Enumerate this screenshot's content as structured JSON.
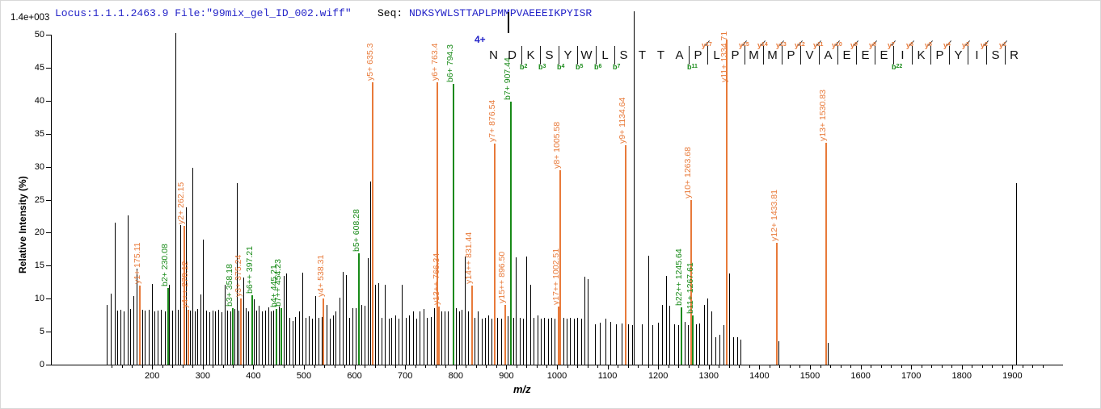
{
  "header": {
    "locus_file": "Locus:1.1.1.2463.9 File:\"99mix_gel_ID_002.wiff\"",
    "seq_label": "Seq:",
    "sequence": "NDKSYWLSTTAPLPMMPVAEEEIKPYISR",
    "intensity_scale": "1.4e+003",
    "precursor_charge": "4+"
  },
  "colors": {
    "y_ion": "#e87a3a",
    "b_ion": "#188a18",
    "header_blue": "#2323c8",
    "peak": "#000000"
  },
  "precursor_marker_mz": 903,
  "seq_display": {
    "residues": [
      {
        "ch": "N",
        "sep": false
      },
      {
        "ch": "D",
        "sep": false
      },
      {
        "ch": "K",
        "sep": true,
        "b": "b2"
      },
      {
        "ch": "S",
        "sep": true,
        "b": "b3"
      },
      {
        "ch": "Y",
        "sep": true,
        "b": "b4"
      },
      {
        "ch": "W",
        "sep": true,
        "b": "b5"
      },
      {
        "ch": "L",
        "sep": true,
        "b": "b6"
      },
      {
        "ch": "S",
        "sep": true,
        "b": "b7"
      },
      {
        "ch": "T",
        "sep": false
      },
      {
        "ch": "T",
        "sep": false
      },
      {
        "ch": "A",
        "sep": false
      },
      {
        "ch": "P",
        "sep": true,
        "b": "b11"
      },
      {
        "ch": "L",
        "sep": true,
        "y": "y17"
      },
      {
        "ch": "P",
        "sep": false
      },
      {
        "ch": "M",
        "sep": true,
        "y": "y15"
      },
      {
        "ch": "M",
        "sep": true,
        "y": "y14"
      },
      {
        "ch": "P",
        "sep": true,
        "y": "y13"
      },
      {
        "ch": "V",
        "sep": true,
        "y": "y12"
      },
      {
        "ch": "A",
        "sep": true,
        "y": "y11"
      },
      {
        "ch": "E",
        "sep": true,
        "y": "y10"
      },
      {
        "ch": "E",
        "sep": true,
        "y": "y9"
      },
      {
        "ch": "E",
        "sep": true,
        "y": "y8"
      },
      {
        "ch": "I",
        "sep": true,
        "y": "y7",
        "b": "b22"
      },
      {
        "ch": "K",
        "sep": true,
        "y": "y6"
      },
      {
        "ch": "P",
        "sep": true,
        "y": "y5"
      },
      {
        "ch": "Y",
        "sep": true,
        "y": "y4"
      },
      {
        "ch": "I",
        "sep": true,
        "y": "y3"
      },
      {
        "ch": "S",
        "sep": true,
        "y": "y2"
      },
      {
        "ch": "R",
        "sep": true,
        "y": "y1"
      }
    ]
  },
  "chart_data": {
    "type": "bar",
    "title": "MS/MS fragment ion spectrum",
    "x_axis": {
      "label": "m/z",
      "min": 0,
      "max": 2000,
      "major_ticks": [
        200,
        300,
        400,
        500,
        600,
        700,
        800,
        900,
        1000,
        1100,
        1200,
        1300,
        1400,
        1500,
        1600,
        1700,
        1800,
        1900
      ],
      "minor_step": 20,
      "minor_start": 120,
      "minor_end": 1960
    },
    "y_axis": {
      "label": "Relative Intensity (%)",
      "min": 0,
      "max": 50,
      "ticks": [
        0,
        5,
        10,
        15,
        20,
        25,
        30,
        35,
        40,
        45,
        50
      ],
      "scale_note": "1.4e+003"
    },
    "annotated_peaks": [
      {
        "l": "y1+ 175.11",
        "mz": 175.11,
        "i": 12,
        "t": "y"
      },
      {
        "l": "b2+ 230.08",
        "mz": 230.08,
        "i": 11.6,
        "t": "b"
      },
      {
        "l": "y2+ 262.15",
        "mz": 262.15,
        "i": 21,
        "t": "y"
      },
      {
        "l": "y4++ 270.12",
        "mz": 270.12,
        "i": 8.3,
        "t": "y"
      },
      {
        "l": "b3+ 358.18",
        "mz": 358.18,
        "i": 8.6,
        "t": "b"
      },
      {
        "l": "y3+ 375.24",
        "mz": 375.24,
        "i": 10,
        "t": "y"
      },
      {
        "l": "b6++ 397.21",
        "mz": 397.21,
        "i": 10.5,
        "t": "b"
      },
      {
        "l": "b4+ 445.21",
        "mz": 445.21,
        "i": 8.4,
        "t": "b"
      },
      {
        "l": "b7++ 454.23",
        "mz": 454.23,
        "i": 8.5,
        "t": "b"
      },
      {
        "l": "y4+ 538.31",
        "mz": 538.31,
        "i": 10,
        "t": "y"
      },
      {
        "l": "b5+ 608.28",
        "mz": 608.28,
        "i": 16.9,
        "t": "b"
      },
      {
        "l": "y5+ 635.3",
        "mz": 635.3,
        "i": 42.8,
        "t": "y"
      },
      {
        "l": "y6+ 763.4",
        "mz": 763.4,
        "i": 42.8,
        "t": "y"
      },
      {
        "l": "y13++ 766.34",
        "mz": 766.34,
        "i": 8.8,
        "t": "y"
      },
      {
        "l": "b6+ 794.3",
        "mz": 794.3,
        "i": 42.5,
        "t": "b"
      },
      {
        "l": "y14++ 831.44",
        "mz": 831.44,
        "i": 12,
        "t": "y"
      },
      {
        "l": "y7+ 876.54",
        "mz": 876.54,
        "i": 33.5,
        "t": "y"
      },
      {
        "l": "y15++ 896.50",
        "mz": 896.5,
        "i": 9,
        "t": "y"
      },
      {
        "l": "b7+ 907.44",
        "mz": 907.44,
        "i": 39.8,
        "t": "b"
      },
      {
        "l": "y17++ 1002.51",
        "mz": 1002.51,
        "i": 8.8,
        "t": "y"
      },
      {
        "l": "y8+ 1005.58",
        "mz": 1005.58,
        "i": 29.5,
        "t": "y"
      },
      {
        "l": "y9+ 1134.64",
        "mz": 1134.64,
        "i": 33.3,
        "t": "y"
      },
      {
        "l": "b22++ 1245.64",
        "mz": 1245.64,
        "i": 8.7,
        "t": "b"
      },
      {
        "l": "y10+ 1263.68",
        "mz": 1263.68,
        "i": 25,
        "t": "y"
      },
      {
        "l": "b11+ 1267.61",
        "mz": 1267.61,
        "i": 7.5,
        "t": "b"
      },
      {
        "l": "y11+ 1334.71",
        "mz": 1334.71,
        "i": 49.3,
        "t": "y",
        "drop": 55
      },
      {
        "l": "y12+ 1433.81",
        "mz": 1433.81,
        "i": 18.4,
        "t": "y"
      },
      {
        "l": "y13+ 1530.83",
        "mz": 1530.83,
        "i": 33.6,
        "t": "y"
      }
    ],
    "peaks": [
      [
        110,
        9
      ],
      [
        118,
        10.8
      ],
      [
        126,
        21.5
      ],
      [
        131,
        8.2
      ],
      [
        137,
        8.3
      ],
      [
        144,
        8.1
      ],
      [
        151,
        22.6
      ],
      [
        157,
        8.4
      ],
      [
        163,
        10.4
      ],
      [
        169,
        14.6
      ],
      [
        180,
        8.3
      ],
      [
        186,
        8.2
      ],
      [
        193,
        8.3
      ],
      [
        200,
        12.2
      ],
      [
        205,
        8.1
      ],
      [
        211,
        8.2
      ],
      [
        218,
        8.3
      ],
      [
        226,
        8.1
      ],
      [
        233,
        12.1
      ],
      [
        240,
        8.2
      ],
      [
        246,
        50.2
      ],
      [
        251,
        8.3
      ],
      [
        256,
        21.2
      ],
      [
        266,
        23.8
      ],
      [
        274,
        8.2
      ],
      [
        279,
        29.8
      ],
      [
        284,
        8.1
      ],
      [
        289,
        8.4
      ],
      [
        295,
        10.6
      ],
      [
        301,
        18.9
      ],
      [
        307,
        8.2
      ],
      [
        313,
        8
      ],
      [
        319,
        8.2
      ],
      [
        325,
        8.1
      ],
      [
        331,
        8.3
      ],
      [
        337,
        8
      ],
      [
        343,
        12.1
      ],
      [
        349,
        8.2
      ],
      [
        355,
        8.1
      ],
      [
        362,
        8.4
      ],
      [
        367,
        27.5
      ],
      [
        371,
        8.2
      ],
      [
        380,
        13.2
      ],
      [
        385,
        8.6
      ],
      [
        390,
        8.1
      ],
      [
        401,
        9.9
      ],
      [
        406,
        8.2
      ],
      [
        411,
        8.9
      ],
      [
        417,
        8.1
      ],
      [
        423,
        8.2
      ],
      [
        429,
        8.7
      ],
      [
        435,
        8.1
      ],
      [
        440,
        8.2
      ],
      [
        450,
        8.8
      ],
      [
        460,
        13.5
      ],
      [
        465,
        13.8
      ],
      [
        471,
        7.1
      ],
      [
        477,
        6.6
      ],
      [
        483,
        7.2
      ],
      [
        490,
        8.1
      ],
      [
        497,
        13.9
      ],
      [
        503,
        7.1
      ],
      [
        509,
        7.3
      ],
      [
        516,
        7
      ],
      [
        523,
        10.4
      ],
      [
        529,
        7.1
      ],
      [
        535,
        7.2
      ],
      [
        544,
        9.1
      ],
      [
        551,
        7
      ],
      [
        557,
        7.4
      ],
      [
        563,
        8.1
      ],
      [
        570,
        10.1
      ],
      [
        577,
        14.1
      ],
      [
        583,
        13.6
      ],
      [
        590,
        7.1
      ],
      [
        596,
        8.5
      ],
      [
        602,
        8.6
      ],
      [
        613,
        9.1
      ],
      [
        620,
        8.9
      ],
      [
        626,
        16.1
      ],
      [
        631,
        27.8
      ],
      [
        641,
        12.1
      ],
      [
        647,
        12.3
      ],
      [
        653,
        7.1
      ],
      [
        660,
        12.1
      ],
      [
        667,
        7
      ],
      [
        673,
        7.1
      ],
      [
        680,
        7.5
      ],
      [
        687,
        7
      ],
      [
        694,
        12.1
      ],
      [
        701,
        7.1
      ],
      [
        708,
        7.5
      ],
      [
        715,
        8.1
      ],
      [
        722,
        7
      ],
      [
        729,
        8.1
      ],
      [
        736,
        8.4
      ],
      [
        743,
        7.1
      ],
      [
        750,
        7.2
      ],
      [
        757,
        8.6
      ],
      [
        772,
        8.1
      ],
      [
        778,
        8.1
      ],
      [
        785,
        8.1
      ],
      [
        800,
        8.5
      ],
      [
        806,
        8.1
      ],
      [
        812,
        8.3
      ],
      [
        818,
        16.4
      ],
      [
        824,
        8.1
      ],
      [
        837,
        7.1
      ],
      [
        844,
        8.1
      ],
      [
        851,
        7
      ],
      [
        858,
        7.1
      ],
      [
        865,
        7.5
      ],
      [
        871,
        7
      ],
      [
        882,
        7.1
      ],
      [
        889,
        7
      ],
      [
        902,
        7.3
      ],
      [
        913,
        7.1
      ],
      [
        919,
        16.2
      ],
      [
        926,
        7.1
      ],
      [
        933,
        7
      ],
      [
        940,
        16.4
      ],
      [
        947,
        12.1
      ],
      [
        954,
        7.1
      ],
      [
        961,
        7.5
      ],
      [
        968,
        7
      ],
      [
        975,
        7.1
      ],
      [
        982,
        7
      ],
      [
        989,
        7.1
      ],
      [
        996,
        7
      ],
      [
        1012,
        7.1
      ],
      [
        1019,
        7
      ],
      [
        1026,
        7.1
      ],
      [
        1033,
        7
      ],
      [
        1040,
        7.1
      ],
      [
        1048,
        7
      ],
      [
        1055,
        13.3
      ],
      [
        1061,
        13
      ],
      [
        1075,
        6.1
      ],
      [
        1085,
        6.3
      ],
      [
        1096,
        7
      ],
      [
        1106,
        6.5
      ],
      [
        1117,
        6.1
      ],
      [
        1127,
        6.2
      ],
      [
        1141,
        6.1
      ],
      [
        1149,
        6
      ],
      [
        1151,
        53.5
      ],
      [
        1168,
        6.1
      ],
      [
        1180,
        16.5
      ],
      [
        1189,
        6
      ],
      [
        1199,
        6.3
      ],
      [
        1208,
        9
      ],
      [
        1215,
        13.5
      ],
      [
        1222,
        8.9
      ],
      [
        1231,
        6.1
      ],
      [
        1239,
        6
      ],
      [
        1252,
        6.5
      ],
      [
        1259,
        6
      ],
      [
        1274,
        6.1
      ],
      [
        1281,
        6.2
      ],
      [
        1290,
        9.1
      ],
      [
        1297,
        10
      ],
      [
        1305,
        8.1
      ],
      [
        1313,
        4.1
      ],
      [
        1321,
        4.5
      ],
      [
        1329,
        6
      ],
      [
        1341,
        13.8
      ],
      [
        1349,
        4.1
      ],
      [
        1356,
        4.2
      ],
      [
        1363,
        3.8
      ],
      [
        1438,
        3.5
      ],
      [
        1535,
        3.3
      ],
      [
        1908,
        27.5
      ]
    ]
  }
}
